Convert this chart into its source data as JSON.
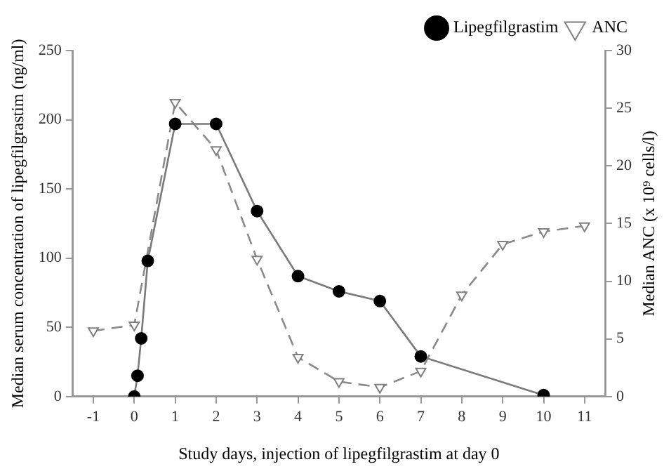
{
  "chart_data": {
    "type": "line",
    "xlabel": "Study days, injection of lipegfilgrastim at day 0",
    "ylabel": "Median serum concentration of lipegfilgrastim (ng/ml)",
    "y2label": "Median ANC (x 10⁹ cells/l)",
    "xlim": [
      -1.5,
      11.5
    ],
    "xticks": [
      -1,
      0,
      1,
      2,
      3,
      4,
      5,
      6,
      7,
      8,
      9,
      10,
      11
    ],
    "ylim": [
      0,
      250
    ],
    "yticks": [
      0,
      50,
      100,
      150,
      200,
      250
    ],
    "y2lim": [
      0,
      30
    ],
    "y2ticks": [
      0,
      5,
      10,
      15,
      20,
      25,
      30
    ],
    "grid": false,
    "legend": "top right",
    "series": [
      {
        "name": "Lipegfilgrastim",
        "color": "#000000",
        "marker": "circle",
        "line_style": "solid",
        "x": [
          0,
          0.08,
          0.17,
          0.33,
          1,
          2,
          3,
          4,
          5,
          6,
          7,
          10
        ],
        "values": [
          0,
          15,
          42,
          98,
          197,
          197,
          134,
          87,
          76,
          69,
          29,
          1
        ]
      },
      {
        "name": "ANC",
        "color": "#808080",
        "marker": "triangle",
        "line_style": "dashed",
        "axis": "y2",
        "x": [
          -1,
          0,
          1,
          2,
          3,
          4,
          5,
          6,
          7,
          8,
          9,
          10,
          11
        ],
        "values": [
          5.7,
          6.2,
          25.5,
          21.4,
          11.9,
          3.4,
          1.3,
          0.8,
          2.2,
          8.8,
          13.2,
          14.3,
          14.8
        ]
      }
    ]
  }
}
